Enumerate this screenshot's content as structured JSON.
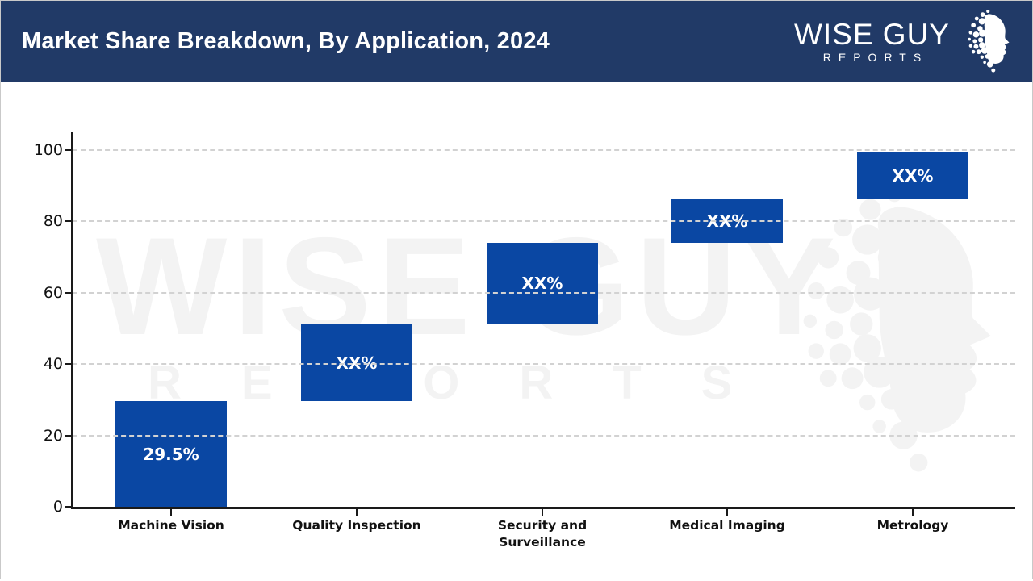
{
  "header": {
    "title": "Market Share Breakdown, By Application, 2024",
    "logo": {
      "line1": "WISE GUY",
      "line2": "REPORTS"
    }
  },
  "watermark": {
    "line1": "WISE GUY",
    "line2": "REPORTS"
  },
  "chart_data": {
    "type": "bar",
    "subtype": "floating-waterfall",
    "title": "Market Share Breakdown, By Application, 2024",
    "categories": [
      "Machine Vision",
      "Quality Inspection",
      "Security and Surveillance",
      "Medical Imaging",
      "Metrology"
    ],
    "segments": [
      {
        "start": 0,
        "end": 29.5,
        "label": "29.5%"
      },
      {
        "start": 29.5,
        "end": 51,
        "label": "XX%"
      },
      {
        "start": 51,
        "end": 74,
        "label": "XX%"
      },
      {
        "start": 74,
        "end": 86,
        "label": "XX%"
      },
      {
        "start": 86,
        "end": 99.5,
        "label": "XX%"
      }
    ],
    "xlabel": "",
    "ylabel": "",
    "yticks": [
      0,
      20,
      40,
      60,
      80,
      100
    ],
    "ylim": [
      0,
      105
    ],
    "grid": "horizontal-dashed, drawn above bars",
    "legend": "none"
  },
  "colors": {
    "header_bg": "#213a67",
    "bar": "#0a47a3",
    "bar_label": "#ffffff",
    "grid": "#d2d2d2",
    "axis": "#1a1a1a",
    "watermark": "#f3f3f3",
    "page_border": "#c9c9c9"
  }
}
